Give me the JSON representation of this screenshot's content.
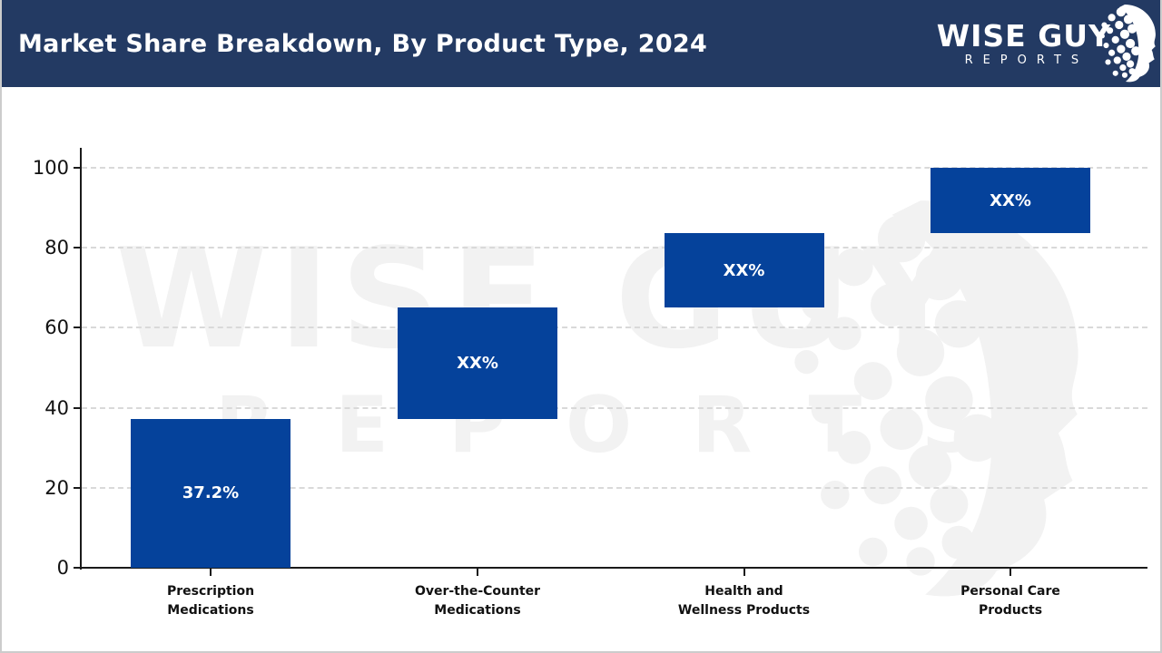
{
  "header": {
    "title": "Market Share Breakdown, By Product Type, 2024",
    "background_color": "#233a63",
    "logo": {
      "wordmark": "WISE GUY",
      "subtitle": "REPORTS"
    }
  },
  "watermark": {
    "line1": "WISE GUY",
    "line2": "REPORTS"
  },
  "chart_data": {
    "type": "bar",
    "variant": "waterfall-stacked-breakdown",
    "title": "Market Share Breakdown, By Product Type, 2024",
    "categories": [
      [
        "Prescription",
        "Medications"
      ],
      [
        "Over-the-Counter",
        "Medications"
      ],
      [
        "Health and",
        "Wellness Products"
      ],
      [
        "Personal Care",
        "Products"
      ]
    ],
    "bars": [
      {
        "category": "Prescription Medications",
        "start": 0,
        "end": 37.2,
        "label": "37.2%"
      },
      {
        "category": "Over-the-Counter Medications",
        "start": 37.2,
        "end": 65,
        "label": "XX%"
      },
      {
        "category": "Health and Wellness Products",
        "start": 65,
        "end": 83.6,
        "label": "XX%"
      },
      {
        "category": "Personal Care Products",
        "start": 83.6,
        "end": 100,
        "label": "XX%"
      }
    ],
    "ylim": [
      0,
      100
    ],
    "yticks": [
      0,
      20,
      40,
      60,
      80,
      100
    ],
    "xlabel": "",
    "ylabel": "",
    "grid": "horizontal-dashed",
    "legend": "none",
    "bar_color": "#05429b",
    "bar_label_color": "#ffffff",
    "axis_color": "#1a1a1a"
  }
}
